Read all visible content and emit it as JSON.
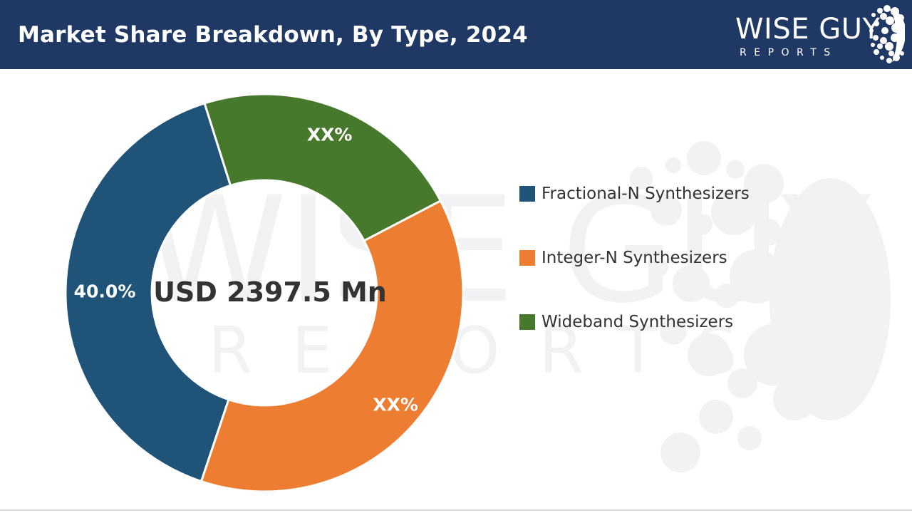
{
  "header": {
    "title": "Market Share Breakdown, By Type, 2024",
    "bg_color": "#1F3864",
    "logo": {
      "line1": "WISE GUY",
      "line2": "REPORTS"
    }
  },
  "chart_data": {
    "type": "pie",
    "subtype": "donut",
    "title": "Market Share Breakdown, By Type, 2024",
    "center_label": "USD 2397.5 Mn",
    "start_angle_deg": 107.5,
    "direction": "counterclockwise",
    "legend_position": "right",
    "note": "Integer-N and Wideband percentages are masked as XX% in the image; their pct values are estimated from arc angles",
    "segments": [
      {
        "label": "Fractional-N Synthesizers",
        "display_value": "40.0%",
        "pct": 40.0,
        "color": "#1F5378"
      },
      {
        "label": "Integer-N Synthesizers",
        "display_value": "XX%",
        "pct": 37.8,
        "color": "#ED7D31"
      },
      {
        "label": "Wideband Synthesizers",
        "display_value": "XX%",
        "pct": 22.2,
        "color": "#46792B"
      }
    ]
  },
  "watermark": {
    "line1": "WISE GUY",
    "line2": "REPORTS"
  }
}
